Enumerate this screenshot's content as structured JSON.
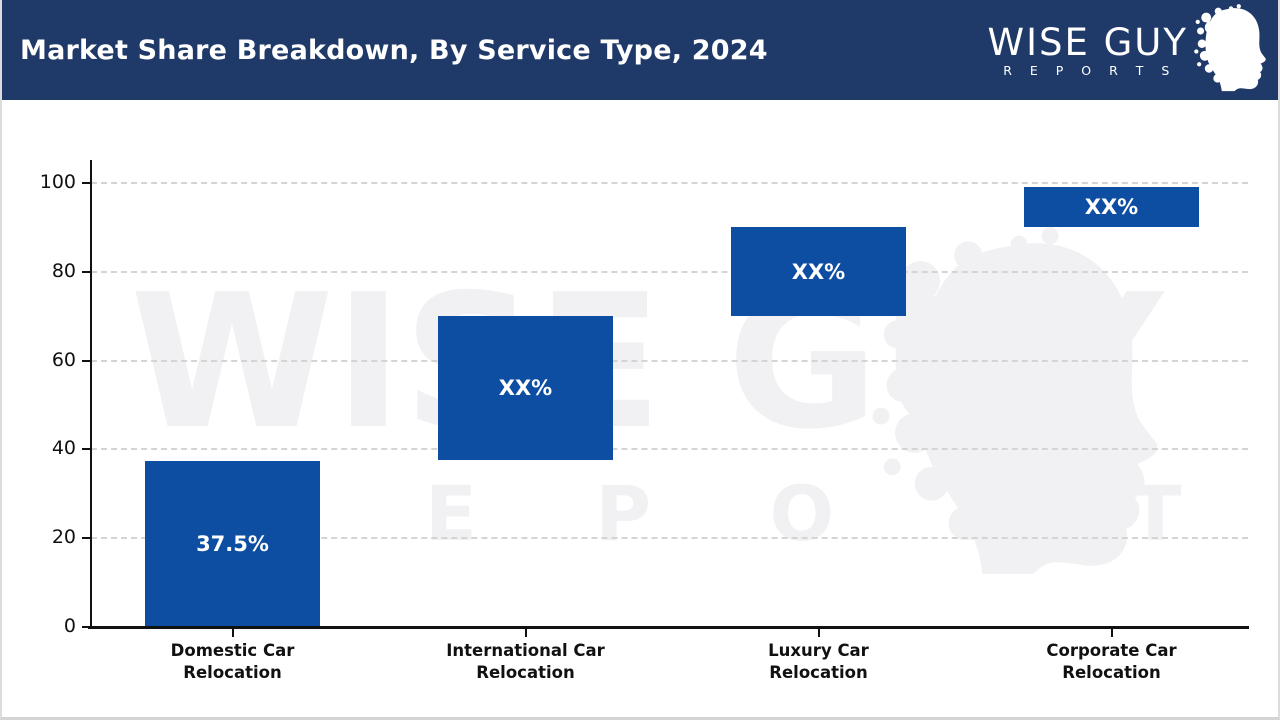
{
  "header": {
    "title": "Market Share Breakdown, By Service Type, 2024",
    "bg_color": "#1f3a68",
    "logo": {
      "line1": "WISE GUY",
      "line2": "R E P O R T S"
    }
  },
  "watermark": {
    "line1": "WISE GUY",
    "line2": "R E P O R T S"
  },
  "chart_data": {
    "type": "bar",
    "subtype": "waterfall",
    "title": "Market Share Breakdown, By Service Type, 2024",
    "categories": [
      "Domestic Car Relocation",
      "International Car Relocation",
      "Luxury Car Relocation",
      "Corporate Car Relocation"
    ],
    "category_lines": [
      [
        "Domestic Car",
        "Relocation"
      ],
      [
        "International Car",
        "Relocation"
      ],
      [
        "Luxury Car",
        "Relocation"
      ],
      [
        "Corporate Car",
        "Relocation"
      ]
    ],
    "segments": [
      {
        "category": "Domestic Car Relocation",
        "start": 0,
        "end": 37.5,
        "label": "37.5%"
      },
      {
        "category": "International Car Relocation",
        "start": 37.5,
        "end": 70,
        "label": "XX%"
      },
      {
        "category": "Luxury Car Relocation",
        "start": 70,
        "end": 90,
        "label": "XX%"
      },
      {
        "category": "Corporate Car Relocation",
        "start": 90,
        "end": 99,
        "label": "XX%"
      }
    ],
    "ylim": [
      0,
      100
    ],
    "yticks": [
      0,
      20,
      40,
      60,
      80,
      100
    ],
    "xlabel": "",
    "ylabel": "",
    "legend_position": "none",
    "grid": {
      "show": true,
      "style": "dashed",
      "color": "#d4d4d4"
    },
    "bar_color": "#0d4da2",
    "bar_label_color": "#ffffff"
  }
}
